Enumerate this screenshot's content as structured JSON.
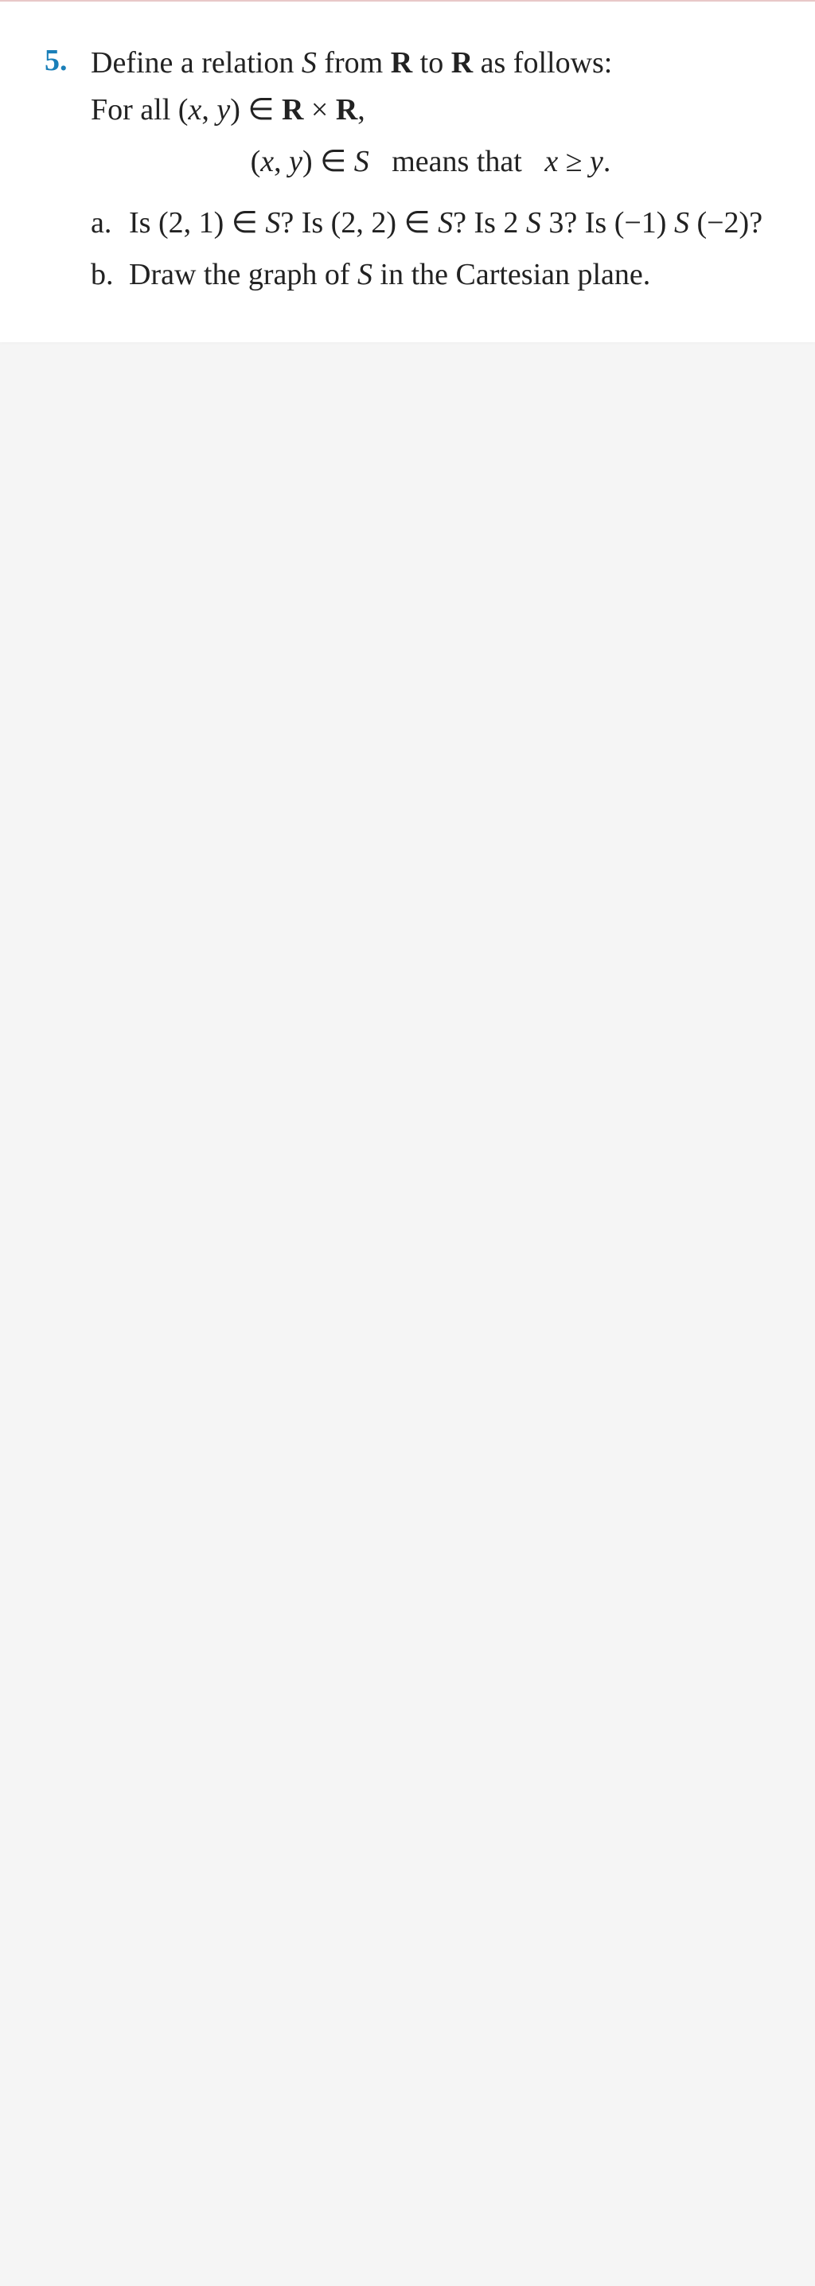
{
  "problem": {
    "number": "5.",
    "intro_line1": "Define a relation ",
    "intro_S": "S",
    "intro_line1b": " from ",
    "intro_R1": "R",
    "intro_line1c": " to ",
    "intro_R2": "R",
    "intro_line1d": " as follows:",
    "forall_prefix": "For all (",
    "forall_x": "x",
    "forall_comma": ", ",
    "forall_y": "y",
    "forall_mid": ") ∈ ",
    "forall_R": "R",
    "forall_times": " × ",
    "forall_R2": "R",
    "forall_end": ",",
    "display_open": "(",
    "display_x": "x",
    "display_comma": ", ",
    "display_y": "y",
    "display_mid": ") ∈ ",
    "display_S": "S",
    "display_means": "   means that   ",
    "display_x2": "x",
    "display_ge": " ≥ ",
    "display_y2": "y",
    "display_period": ".",
    "a_label": "a.",
    "a_q1_pre": "Is (2, 1) ∈ ",
    "a_q1_S": "S",
    "a_q1_q": "? Is (2, 2) ∈ ",
    "a_q2_S": "S",
    "a_q2_q": "? Is 2 ",
    "a_q3_S": "S",
    "a_q3_mid": " 3? Is (−1) ",
    "a_q4_S": "S",
    "a_q4_end": " (−2)?",
    "b_label": "b.",
    "b_text_pre": "Draw the graph of ",
    "b_S": "S",
    "b_text_post": " in the Cartesian plane."
  }
}
